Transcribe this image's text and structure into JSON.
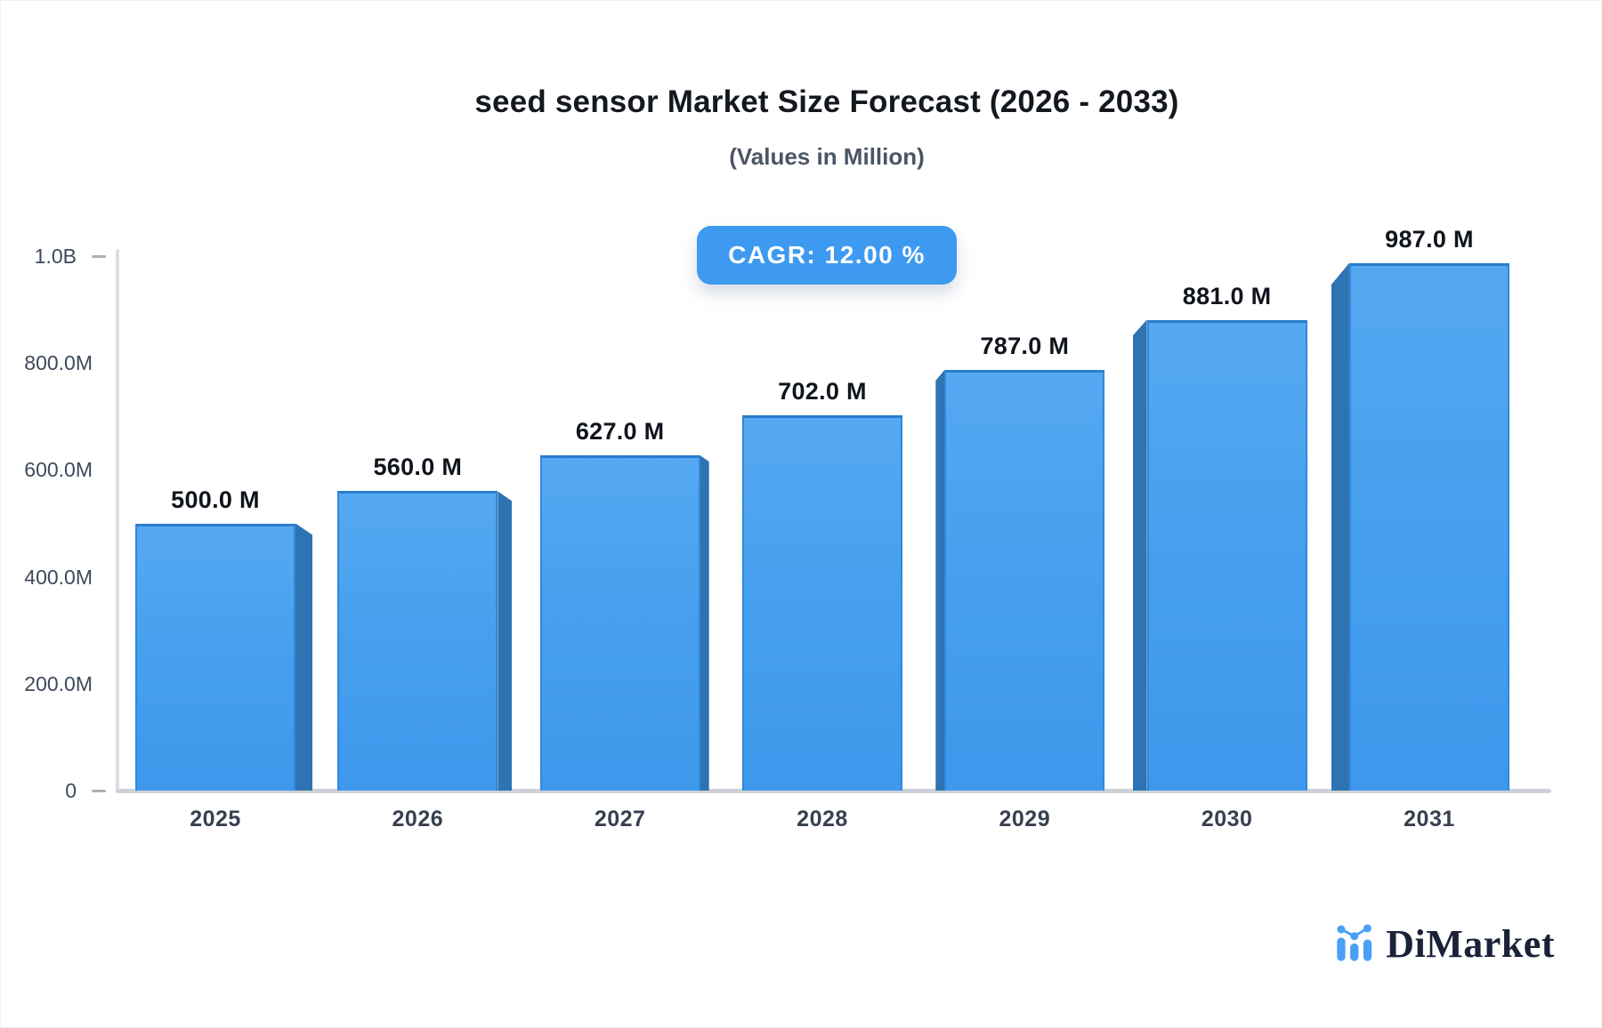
{
  "title": "seed sensor Market Size Forecast (2026 - 2033)",
  "subtitle": "(Values in Million)",
  "cagr_badge_label": "CAGR: 12.00 %",
  "watermark": {
    "brand": "DiMarket",
    "icon": "bar-line-chart-icon",
    "icon_color": "#4aa0f5",
    "text_color": "#1a2138"
  },
  "colors": {
    "accent_blue": "#3d9af0",
    "bar_face_top": "#55a9f1",
    "bar_face_bottom": "#3e98ec",
    "bar_side": "#2e73b2",
    "axis_line": "#dcdde3",
    "baseline": "#cdd2d8",
    "title_text": "#14181f",
    "subtitle_text": "#4b5564",
    "tick_text": "#3e4a5c"
  },
  "chart_data": {
    "type": "bar",
    "title": "seed sensor Market Size Forecast (2026 - 2033)",
    "subtitle": "(Values in Million)",
    "categories": [
      "2025",
      "2026",
      "2027",
      "2028",
      "2029",
      "2030",
      "2031"
    ],
    "values": [
      500,
      560,
      627,
      702,
      787,
      881,
      987
    ],
    "value_labels": [
      "500.0 M",
      "560.0 M",
      "627.0 M",
      "702.0 M",
      "787.0 M",
      "881.0 M",
      "987.0 M"
    ],
    "values_unit": "million",
    "xlabel": "",
    "ylabel": "",
    "ylim": [
      0,
      1000
    ],
    "y_ticks_top_to_bottom": [
      "1.0B",
      "800.0M",
      "600.0M",
      "400.0M",
      "200.0M",
      "0"
    ],
    "grid": false,
    "legend": false,
    "annotations": [
      "CAGR: 12.00 %"
    ],
    "bar_style": "3d-perspective"
  }
}
